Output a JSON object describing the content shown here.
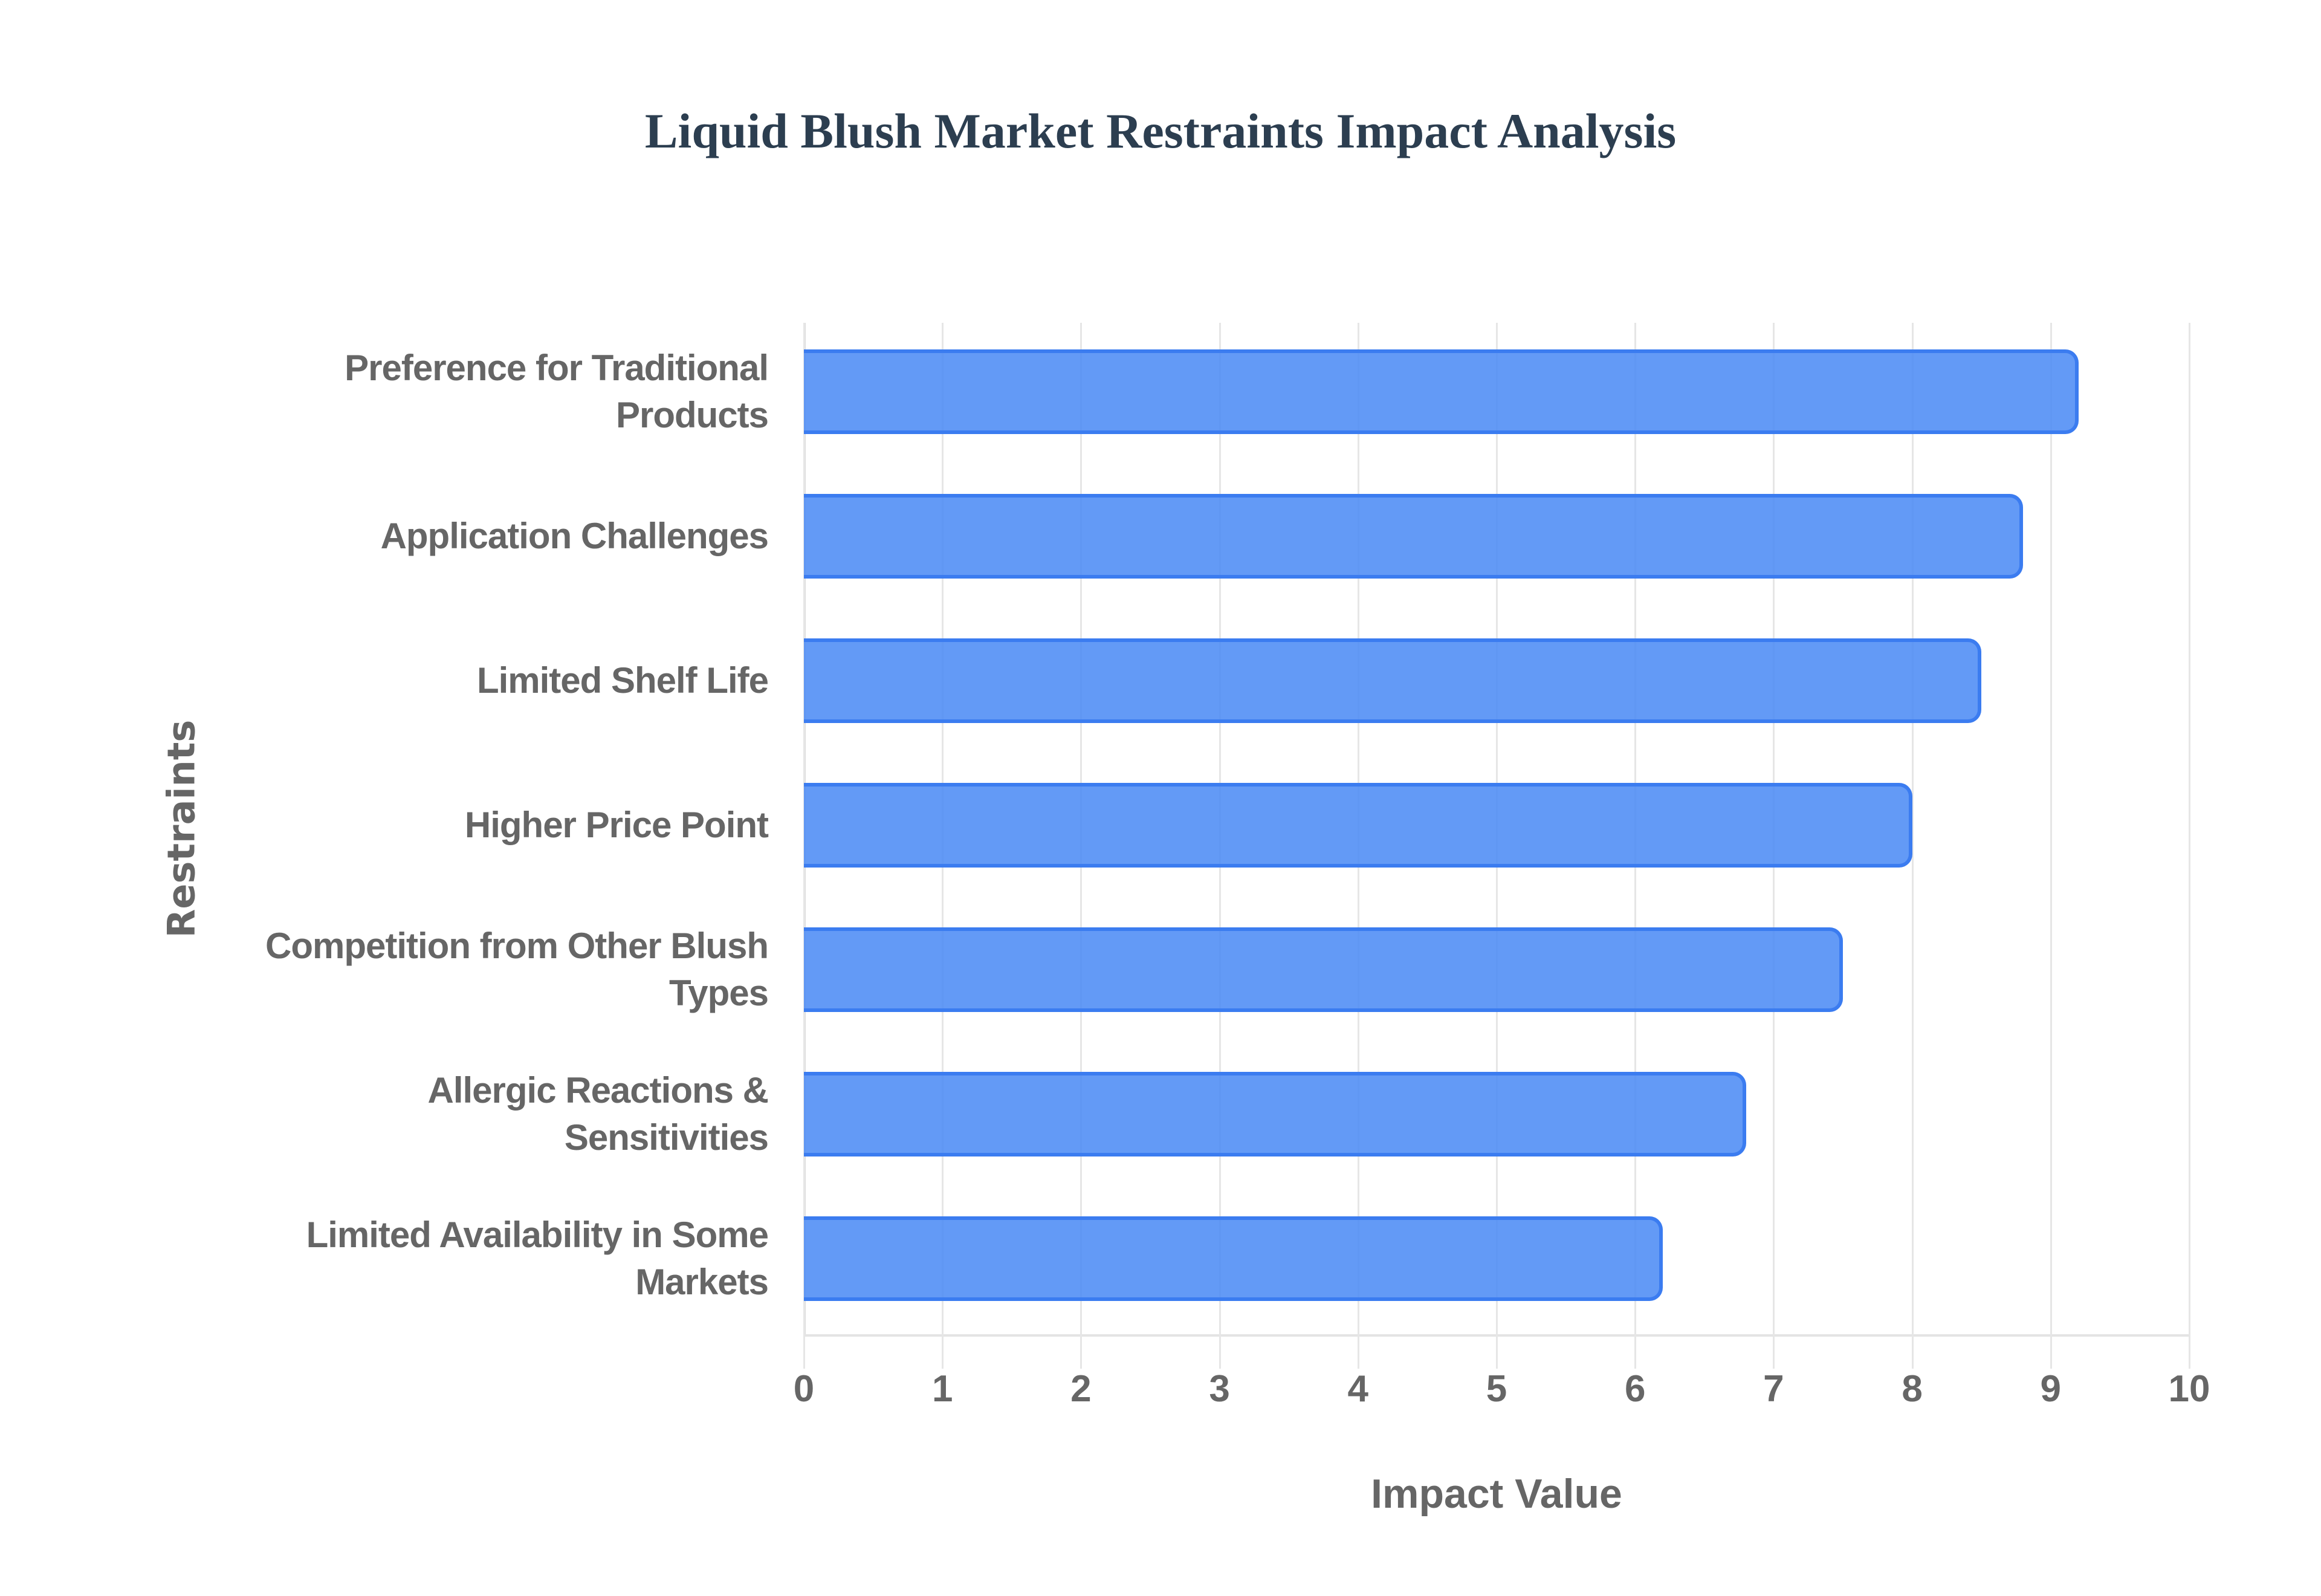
{
  "chart_data": {
    "type": "bar",
    "orientation": "horizontal",
    "title": "Liquid Blush Market Restraints Impact Analysis",
    "xlabel": "Impact Value",
    "ylabel": "Restraints",
    "xlim": [
      0,
      10
    ],
    "xticks": [
      "0",
      "1",
      "2",
      "3",
      "4",
      "5",
      "6",
      "7",
      "8",
      "9",
      "10"
    ],
    "grid": true,
    "legend": null,
    "categories": [
      "Preference for Traditional Products",
      "Application Challenges",
      "Limited Shelf Life",
      "Higher Price Point",
      "Competition from Other Blush Types",
      "Allergic Reactions & Sensitivities",
      "Limited Availability in Some Markets"
    ],
    "values": [
      9.2,
      8.8,
      8.5,
      8.0,
      7.5,
      6.8,
      6.2
    ],
    "colors": {
      "bar_fill": "#4d8cf5",
      "bar_border": "#3b7cf0",
      "title": "#2c3e50",
      "axis_text": "#666666",
      "grid": "#e6e6e6"
    }
  },
  "labels": [
    {
      "line1": "Preference for Traditional",
      "line2": "Products"
    },
    {
      "line1": "Application Challenges",
      "line2": ""
    },
    {
      "line1": "Limited Shelf Life",
      "line2": ""
    },
    {
      "line1": "Higher Price Point",
      "line2": ""
    },
    {
      "line1": "Competition from Other Blush",
      "line2": "Types"
    },
    {
      "line1": "Allergic Reactions &",
      "line2": "Sensitivities"
    },
    {
      "line1": "Limited Availability in Some",
      "line2": "Markets"
    }
  ]
}
